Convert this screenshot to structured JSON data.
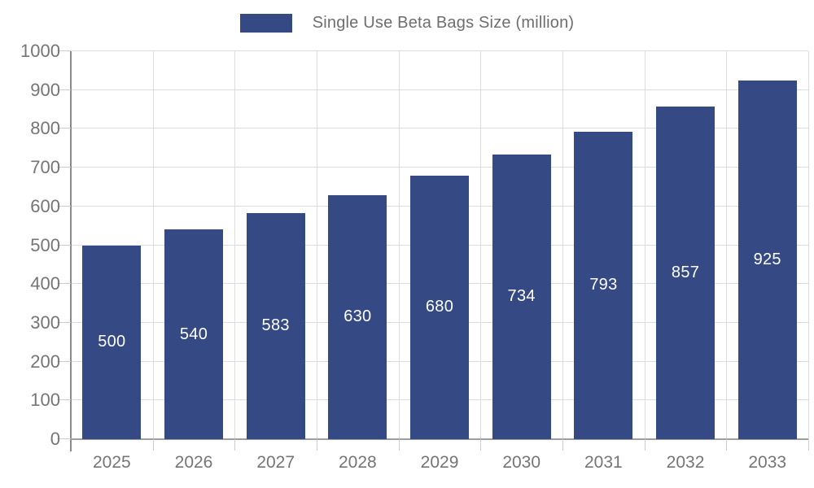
{
  "chart_data": {
    "type": "bar",
    "title": "",
    "categories": [
      "2025",
      "2026",
      "2027",
      "2028",
      "2029",
      "2030",
      "2031",
      "2032",
      "2033"
    ],
    "series": [
      {
        "name": "Single Use Beta Bags Size (million)",
        "values": [
          500,
          540,
          583,
          630,
          680,
          734,
          793,
          857,
          925
        ]
      }
    ],
    "xlabel": "",
    "ylabel": "",
    "ylim": [
      0,
      1000
    ],
    "y_ticks": [
      0,
      100,
      200,
      300,
      400,
      500,
      600,
      700,
      800,
      900,
      1000
    ],
    "grid": true,
    "legend_position": "top-center",
    "value_label_placement": "inside-bar-center",
    "colors": {
      "bar": "#354a85",
      "value_label": "#ffffff",
      "axis_text": "#757575",
      "legend_text": "#6e6e6e",
      "gridline": "#dddddd",
      "axis_line": "#8a8a8a",
      "baseline": "#9e9e9e",
      "tick": "#cccccc"
    }
  }
}
